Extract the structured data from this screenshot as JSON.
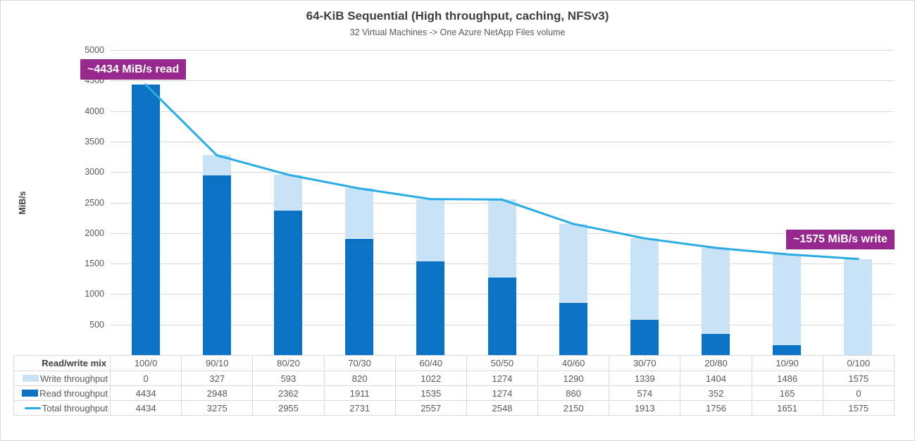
{
  "header": {
    "title": "64-KiB Sequential (High throughput, caching, NFSv3)",
    "subtitle": "32 Virtual Machines -> One Azure NetApp Files volume"
  },
  "y_axis": {
    "label": "MiB/s"
  },
  "callouts": {
    "color": "#96288E",
    "read": {
      "text": "~4434 MiB/s read"
    },
    "write": {
      "text": "~1575 MiB/s write"
    }
  },
  "chart_data": {
    "type": "bar",
    "subtype": "stacked-bars-with-total-line",
    "title": "64-KiB Sequential (High throughput, caching, NFSv3)",
    "subtitle": "32 Virtual Machines -> One Azure NetApp Files volume",
    "ylabel": "MiB/s",
    "xlabel": "",
    "ylim": [
      0,
      5000
    ],
    "ytick_step": 500,
    "grid": "horizontal",
    "legend_position": "table-row-labels",
    "row_header": "Read/write mix",
    "categories": [
      "100/0",
      "90/10",
      "80/20",
      "70/30",
      "60/40",
      "50/50",
      "40/60",
      "30/70",
      "20/80",
      "10/90",
      "0/100"
    ],
    "series": [
      {
        "name": "Write throughput",
        "kind": "bar",
        "color": "#C9E2F5",
        "values": [
          0,
          327,
          593,
          820,
          1022,
          1274,
          1290,
          1339,
          1404,
          1486,
          1575
        ]
      },
      {
        "name": "Read throughput",
        "kind": "bar",
        "color": "#0B72C4",
        "values": [
          4434,
          2948,
          2362,
          1911,
          1535,
          1274,
          860,
          574,
          352,
          165,
          0
        ]
      },
      {
        "name": "Total throughput",
        "kind": "line",
        "color": "#29ACE3",
        "values": [
          4434,
          3275,
          2955,
          2731,
          2557,
          2548,
          2150,
          1913,
          1756,
          1651,
          1575
        ]
      }
    ]
  }
}
